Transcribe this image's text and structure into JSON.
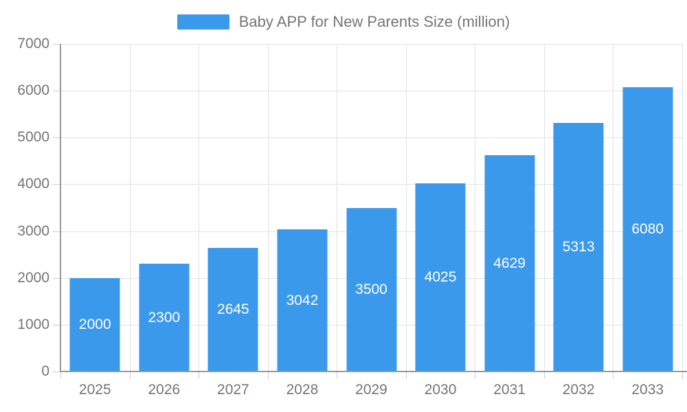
{
  "chart_data": {
    "type": "bar",
    "title": "Baby APP for New Parents Size (million)",
    "legend_entries": [
      "Baby APP for New Parents Size (million)"
    ],
    "legend_position": "top-center",
    "categories": [
      "2025",
      "2026",
      "2027",
      "2028",
      "2029",
      "2030",
      "2031",
      "2032",
      "2033"
    ],
    "series": [
      {
        "name": "Baby APP for New Parents Size (million)",
        "values": [
          2000,
          2300,
          2645,
          3042,
          3500,
          4025,
          4629,
          5313,
          6080
        ]
      }
    ],
    "xlabel": "",
    "ylabel": "",
    "ylim": [
      0,
      7000
    ],
    "y_ticks": [
      0,
      1000,
      2000,
      3000,
      4000,
      5000,
      6000,
      7000
    ],
    "grid": "horizontal and vertical gridlines on",
    "bar_labels": "values shown in white, centered inside bars"
  },
  "colors": {
    "bar": "#3B99EC",
    "bar_label": "#FFFFFF",
    "gridline": "#E1E1E1",
    "axis_line": "#999999",
    "tick_line": "#CCCCCC",
    "text": "#757575",
    "background": "#FFFFFF"
  }
}
